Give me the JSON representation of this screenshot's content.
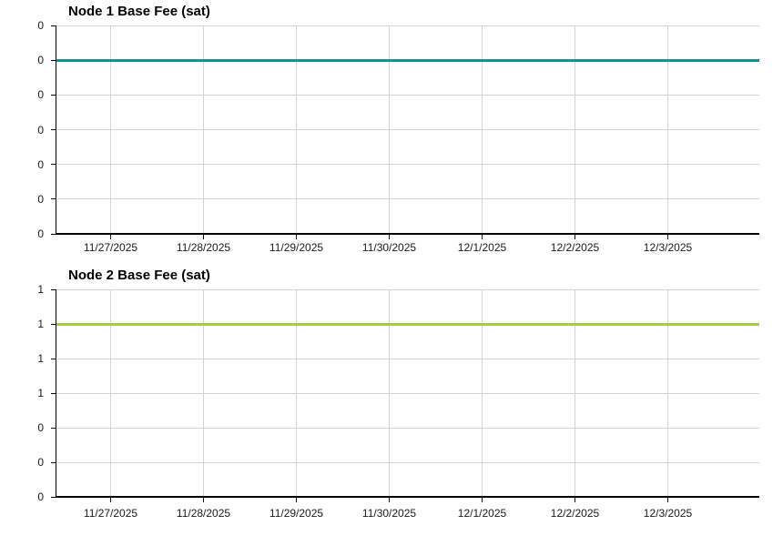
{
  "chart_data": [
    {
      "type": "line",
      "title": "Node 1 Base Fee (sat)",
      "xlabel": "",
      "ylabel": "",
      "x_tick_labels": [
        "11/27/2025",
        "11/28/2025",
        "11/29/2025",
        "11/30/2025",
        "12/1/2025",
        "12/2/2025",
        "12/3/2025"
      ],
      "y_tick_labels_top_to_bottom": [
        "0",
        "0",
        "0",
        "0",
        "0",
        "0",
        "0"
      ],
      "series": [
        {
          "name": "Node 1 Base Fee",
          "color": "#10919d",
          "values": [
            0,
            0,
            0,
            0,
            0,
            0,
            0
          ],
          "constant_line": true,
          "line_tick_index_from_top": 1
        }
      ],
      "grid": true,
      "legend_position": "none"
    },
    {
      "type": "line",
      "title": "Node 2 Base Fee (sat)",
      "xlabel": "",
      "ylabel": "",
      "x_tick_labels": [
        "11/27/2025",
        "11/28/2025",
        "11/29/2025",
        "11/30/2025",
        "12/1/2025",
        "12/2/2025",
        "12/3/2025"
      ],
      "y_tick_labels_top_to_bottom": [
        "1",
        "1",
        "1",
        "1",
        "0",
        "0",
        "0"
      ],
      "series": [
        {
          "name": "Node 2 Base Fee",
          "color": "#a4cd3a",
          "values": [
            1,
            1,
            1,
            1,
            1,
            1,
            1
          ],
          "constant_line": true,
          "line_tick_index_from_top": 1
        }
      ],
      "grid": true,
      "legend_position": "none"
    }
  ],
  "colors": {
    "background": "#ffffff",
    "gridline": "#d3d3d3",
    "axis": "#000000",
    "tick": "#000000",
    "label_text": "#1a1a1a"
  }
}
